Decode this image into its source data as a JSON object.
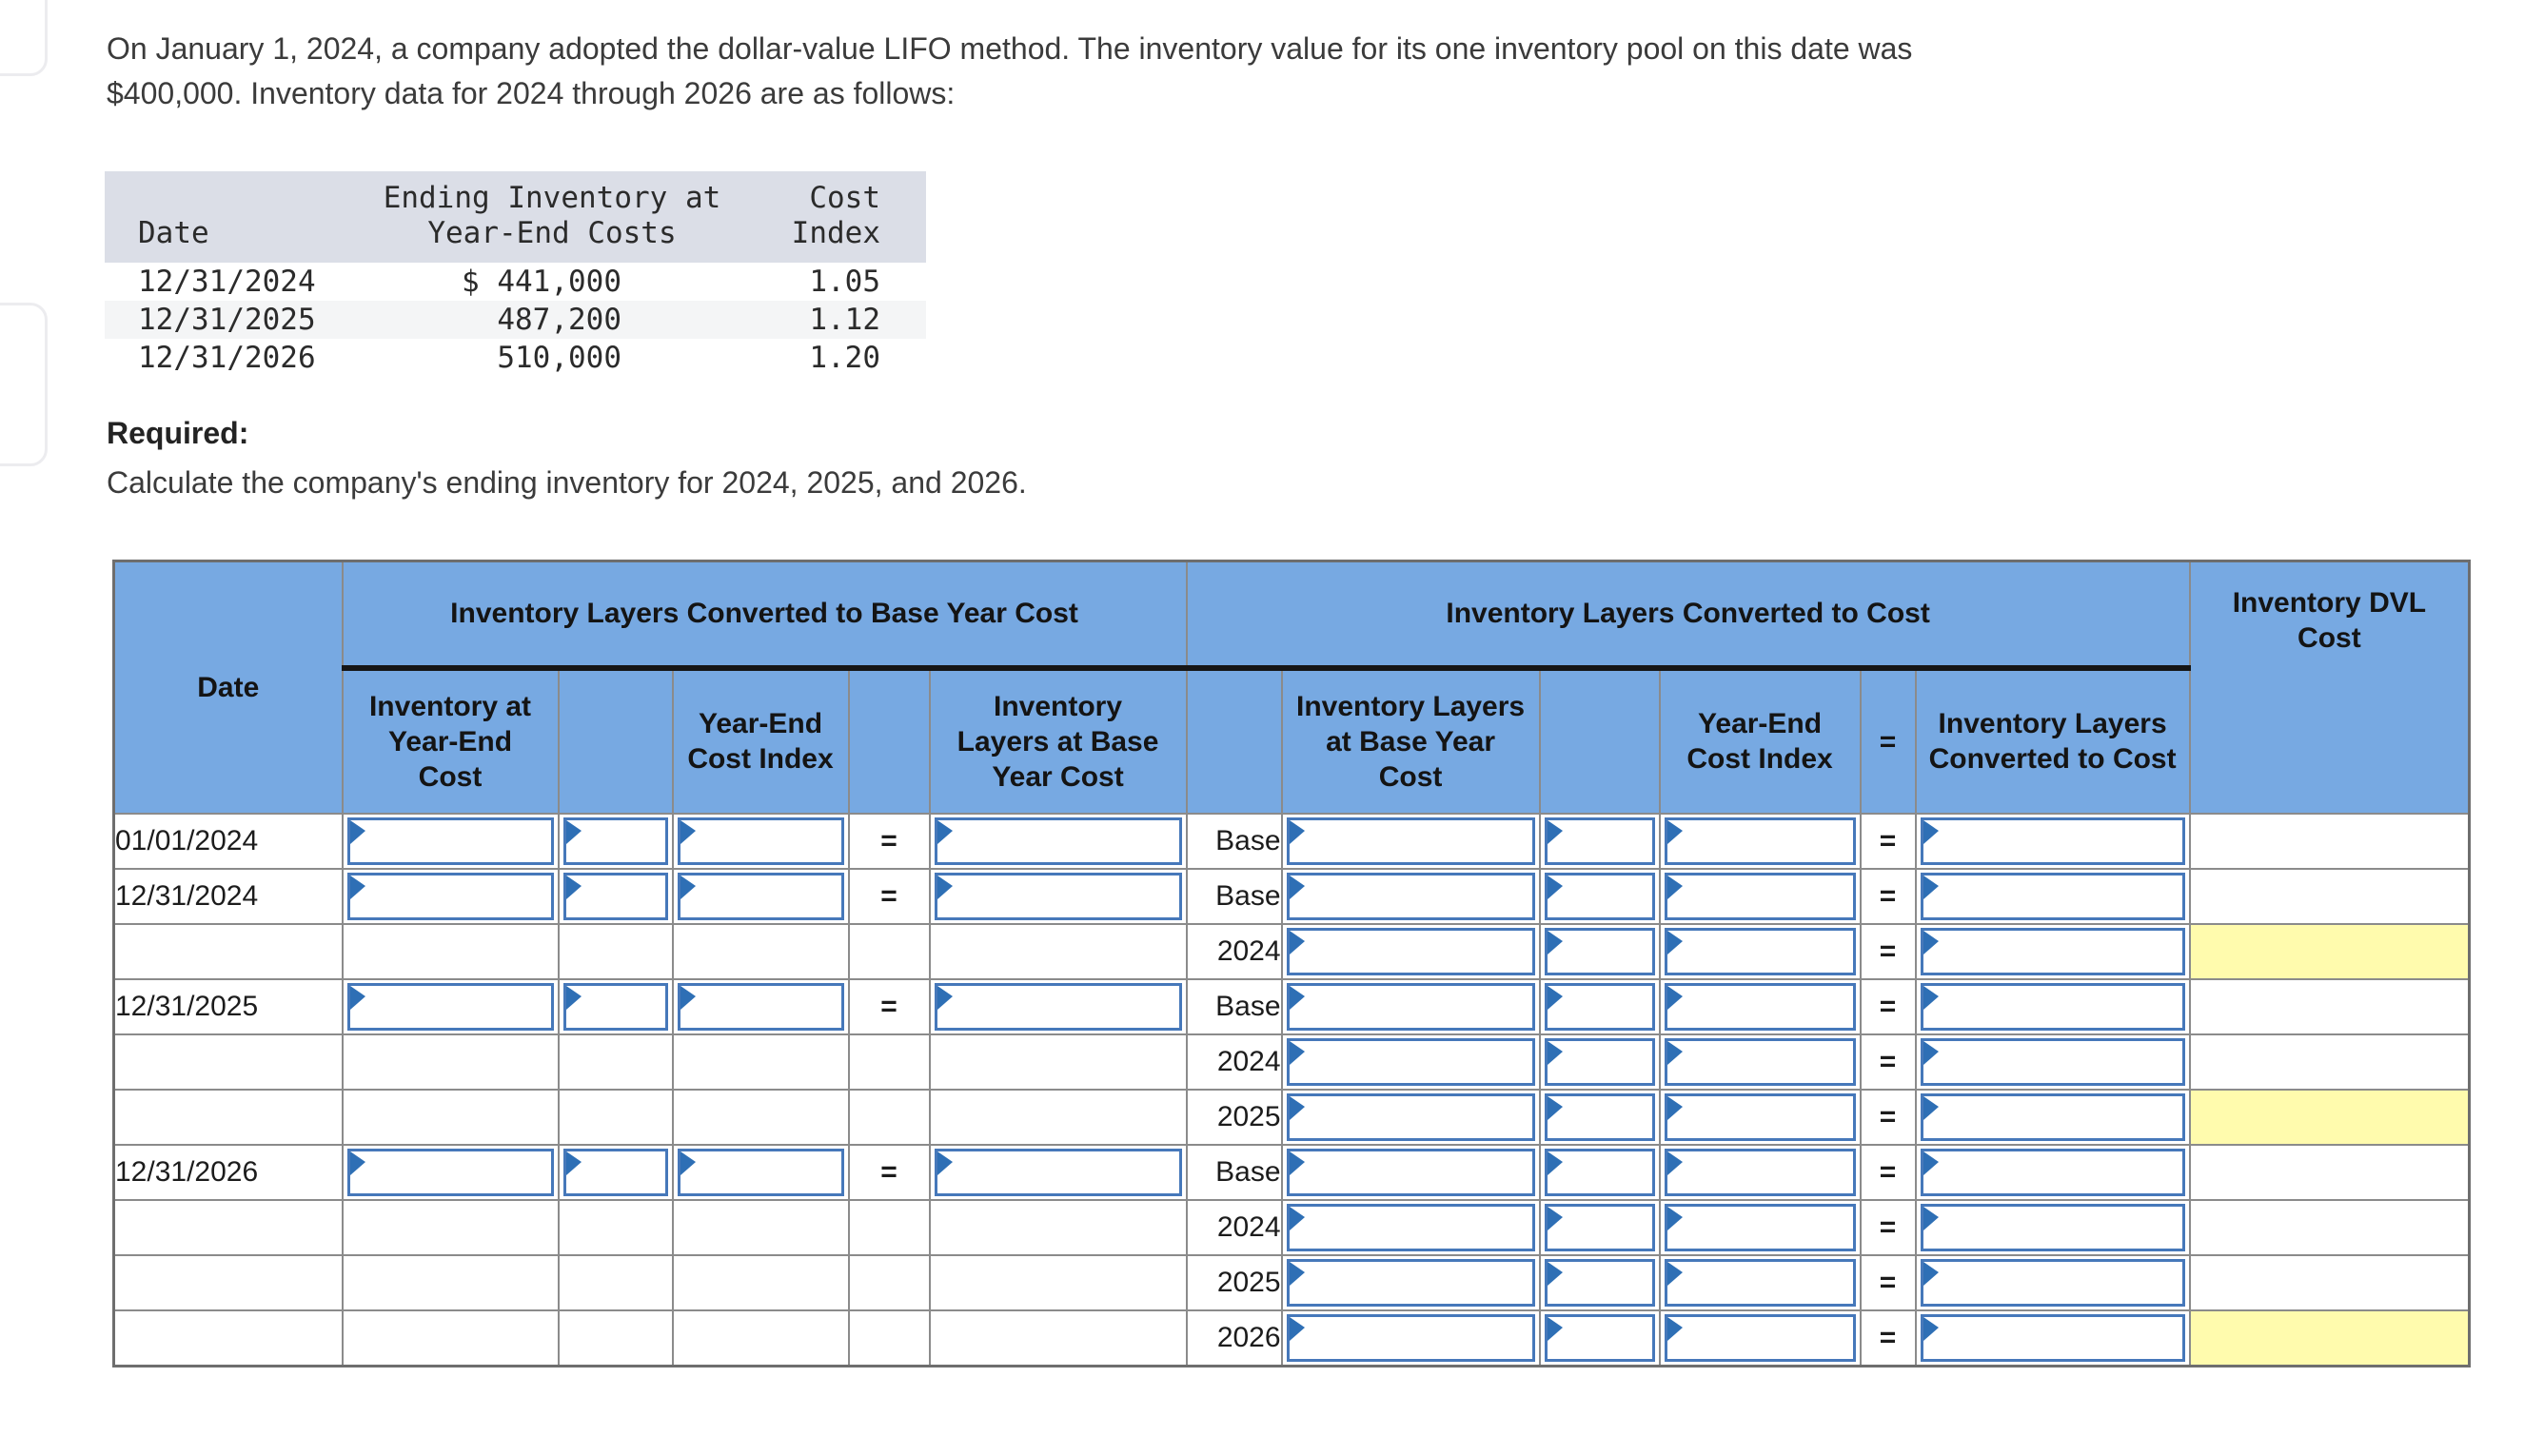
{
  "problem": {
    "paragraph": "On January 1, 2024, a company adopted the dollar-value LIFO method. The inventory value for its one inventory pool on this date was\n$400,000. Inventory data for 2024 through 2026 are as follows:",
    "required_label": "Required:",
    "required_text": "Calculate the company's ending inventory for 2024, 2025, and 2026."
  },
  "data_table": {
    "headers": {
      "date": "Date",
      "ending_inventory": "Ending Inventory at\nYear-End Costs",
      "cost_index": "Cost\nIndex"
    },
    "rows": [
      {
        "date": "12/31/2024",
        "ending_inventory": "$ 441,000",
        "cost_index": "1.05"
      },
      {
        "date": "12/31/2025",
        "ending_inventory": "487,200",
        "cost_index": "1.12"
      },
      {
        "date": "12/31/2026",
        "ending_inventory": "510,000",
        "cost_index": "1.20"
      }
    ]
  },
  "work_table": {
    "date_header": "Date",
    "group1_header": "Inventory Layers Converted to Base Year Cost",
    "group2_header": "Inventory Layers Converted to Cost",
    "dvl_header": "Inventory DVL\nCost",
    "equals": "=",
    "sub_headers": {
      "g1_inventory_at_year_end_cost": "Inventory at\nYear-End\nCost",
      "g1_blank1": "",
      "g1_year_end_cost_index": "Year-End\nCost Index",
      "g1_blank2": "",
      "g1_layers_at_base_year_cost": "Inventory\nLayers at Base\nYear Cost",
      "layer_label_blank": "",
      "g2_layers_at_base_year_cost": "Inventory Layers\nat Base Year\nCost",
      "g2_blank1": "",
      "g2_year_end_cost_index": "Year-End\nCost Index",
      "g2_equals": "=",
      "g2_layers_converted_to_cost": "Inventory Layers\nConverted to Cost"
    },
    "rows": [
      {
        "date": "01/01/2024",
        "layer": "Base",
        "has_layer_inputs": true,
        "dvl_highlighted": false
      },
      {
        "date": "12/31/2024",
        "layer": "Base",
        "has_layer_inputs": true,
        "dvl_highlighted": false
      },
      {
        "date": "",
        "layer": "2024",
        "has_layer_inputs": false,
        "dvl_highlighted": true
      },
      {
        "date": "12/31/2025",
        "layer": "Base",
        "has_layer_inputs": true,
        "dvl_highlighted": false
      },
      {
        "date": "",
        "layer": "2024",
        "has_layer_inputs": false,
        "dvl_highlighted": false
      },
      {
        "date": "",
        "layer": "2025",
        "has_layer_inputs": false,
        "dvl_highlighted": true
      },
      {
        "date": "12/31/2026",
        "layer": "Base",
        "has_layer_inputs": true,
        "dvl_highlighted": false
      },
      {
        "date": "",
        "layer": "2024",
        "has_layer_inputs": false,
        "dvl_highlighted": false
      },
      {
        "date": "",
        "layer": "2025",
        "has_layer_inputs": false,
        "dvl_highlighted": false
      },
      {
        "date": "",
        "layer": "2026",
        "has_layer_inputs": false,
        "dvl_highlighted": true
      }
    ],
    "input_value": "",
    "colors": {
      "header_blue": "#77A9E2",
      "highlight_yellow": "#FFFBAD",
      "input_border_blue": "#4678BA",
      "flag_blue": "#2E6FB5",
      "grid_gray": "#8B8B8B",
      "data_table_header_bg": "#DBDEE7",
      "data_table_stripe": "#F4F5F6"
    }
  }
}
